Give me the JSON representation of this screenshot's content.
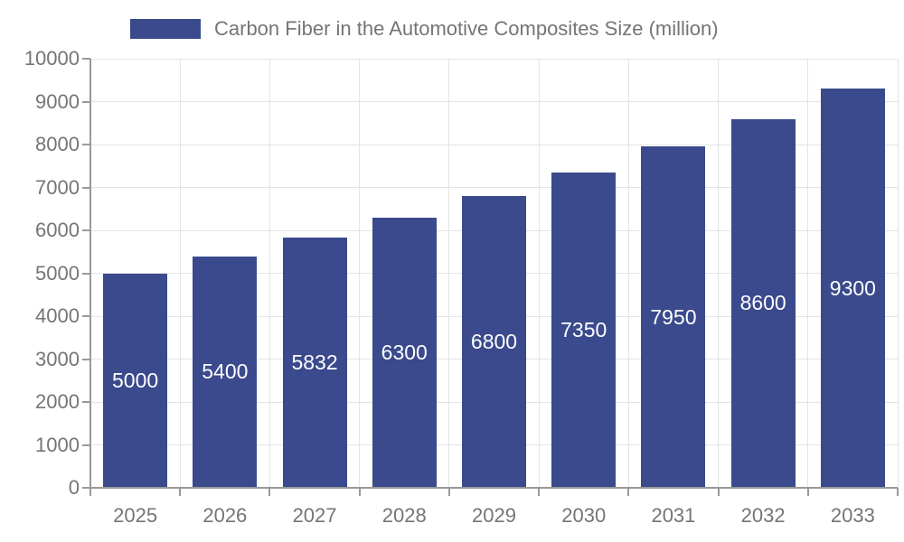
{
  "chart_data": {
    "type": "bar",
    "title": "Carbon Fiber in the Automotive Composites Size (million)",
    "categories": [
      "2025",
      "2026",
      "2027",
      "2028",
      "2029",
      "2030",
      "2031",
      "2032",
      "2033"
    ],
    "values": [
      5000,
      5400,
      5832,
      6300,
      6800,
      7350,
      7950,
      8600,
      9300
    ],
    "xlabel": "",
    "ylabel": "",
    "ylim": [
      0,
      10000
    ],
    "ytick_step": 1000,
    "grid": true,
    "legend_position": "top",
    "legend_entries": [
      "Carbon Fiber in the Automotive Composites Size (million)"
    ],
    "colors": {
      "bar": "#3A4A8C",
      "bar_label": "#FFFFFF",
      "axis": "#999999",
      "grid": "#E4E4E8",
      "text": "#757575"
    }
  }
}
